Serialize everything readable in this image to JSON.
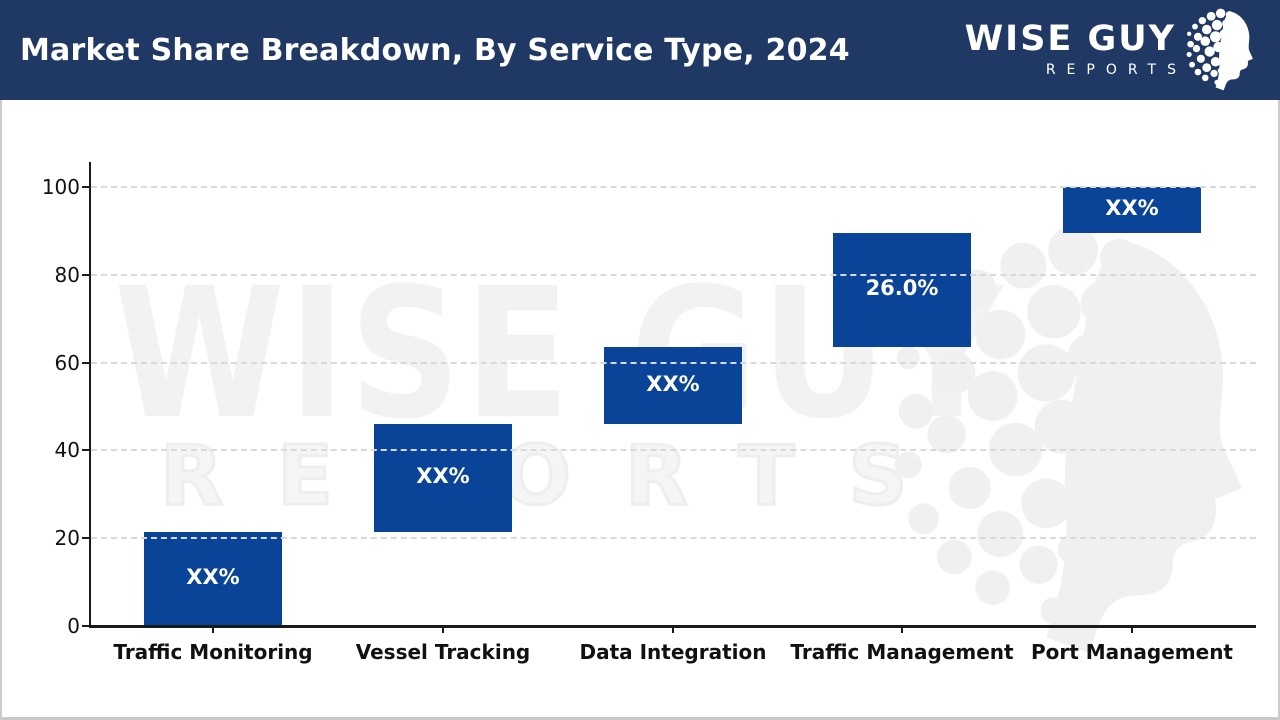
{
  "header": {
    "title": "Market Share Breakdown, By Service Type, 2024",
    "bg_color": "#203864",
    "logo": {
      "line1": "WISE GUY",
      "line2": "REPORTS"
    }
  },
  "watermark": {
    "line1": "WISE GUY",
    "line2": "REPORTS"
  },
  "chart_data": {
    "type": "bar",
    "subtype": "waterfall",
    "title": "Market Share Breakdown, By Service Type, 2024",
    "xlabel": "",
    "ylabel": "",
    "categories": [
      "Traffic Monitoring",
      "Vessel Tracking",
      "Data Integration",
      "Traffic Management",
      "Port Management"
    ],
    "bars": [
      {
        "category": "Traffic Monitoring",
        "start": 0,
        "end": 21.5,
        "value": 21.5,
        "label": "XX%"
      },
      {
        "category": "Vessel Tracking",
        "start": 21.5,
        "end": 46.0,
        "value": 24.5,
        "label": "XX%"
      },
      {
        "category": "Data Integration",
        "start": 46.0,
        "end": 63.5,
        "value": 17.5,
        "label": "XX%"
      },
      {
        "category": "Traffic Management",
        "start": 63.5,
        "end": 89.5,
        "value": 26.0,
        "label": "26.0%"
      },
      {
        "category": "Port Management",
        "start": 89.5,
        "end": 100,
        "value": 10.5,
        "label": "XX%"
      }
    ],
    "y_ticks": [
      0,
      20,
      40,
      60,
      80,
      100
    ],
    "ylim": [
      0,
      105
    ],
    "bar_color": "#0a4499",
    "grid": true,
    "gridline_style": "dashed",
    "gridlines_above_bars": true,
    "legend": "none"
  }
}
